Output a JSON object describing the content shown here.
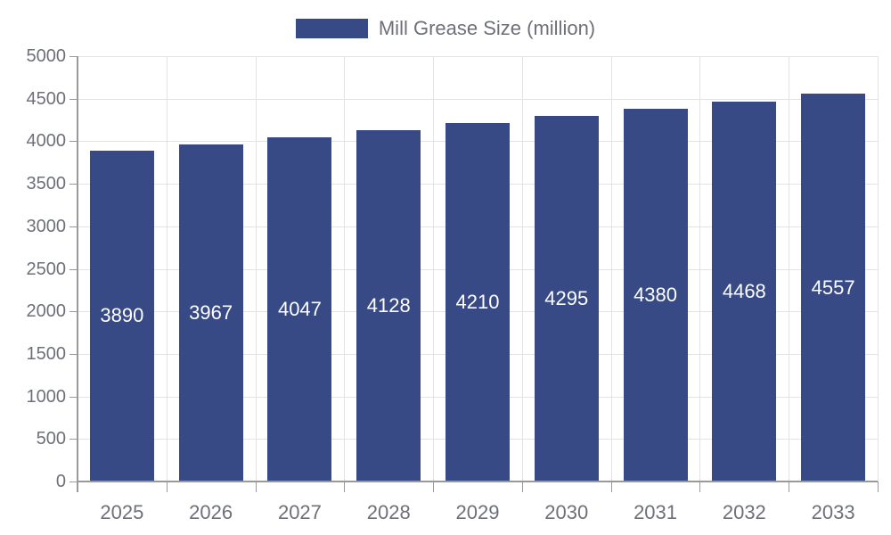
{
  "legend": {
    "label": "Mill Grease Size (million)"
  },
  "colors": {
    "bar": "#374A85",
    "axis": "#999999",
    "grid": "#E3E3E3",
    "tick_label": "#6E7079",
    "legend_text": "#6E7079",
    "value_label": "#FFFFFF",
    "background": "#FFFFFF"
  },
  "chart_data": {
    "type": "bar",
    "title": "",
    "legend": "Mill Grease Size (million)",
    "legend_position": "top-center",
    "categories": [
      "2025",
      "2026",
      "2027",
      "2028",
      "2029",
      "2030",
      "2031",
      "2032",
      "2033"
    ],
    "values": [
      3890,
      3967,
      4047,
      4128,
      4210,
      4295,
      4380,
      4468,
      4557
    ],
    "series_name": "Mill Grease Size (million)",
    "xlabel": "",
    "ylabel": "",
    "ylim": [
      0,
      5000
    ],
    "ytick_step": 500,
    "ytick_labels": [
      "0",
      "500",
      "1000",
      "1500",
      "2000",
      "2500",
      "3000",
      "3500",
      "4000",
      "4500",
      "5000"
    ],
    "grid": true,
    "value_labels_shown": true,
    "value_label_position": "center-of-bar"
  }
}
